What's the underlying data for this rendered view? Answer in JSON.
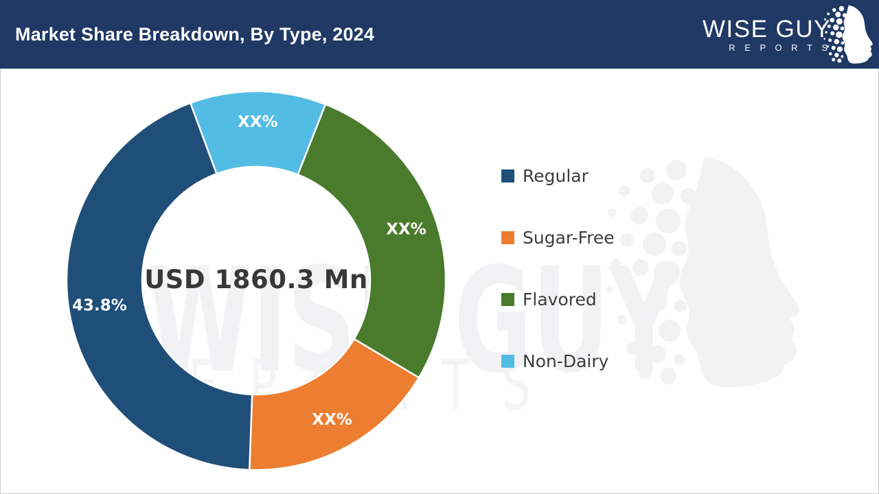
{
  "header": {
    "title": "Market Share Breakdown, By Type, 2024",
    "logo": {
      "line1": "WISE GUY",
      "line2": "R E P O R T S"
    }
  },
  "watermark": {
    "line1": "WISE GUY",
    "line2": "R E P O R T S"
  },
  "chart_data": {
    "type": "pie",
    "subtype": "donut",
    "title": "Market Share Breakdown, By Type, 2024",
    "center_label": "USD 1860.3 Mn",
    "units": "percent of market share",
    "segments": [
      {
        "name": "Regular",
        "label": "Regular",
        "value_pct": 43.8,
        "display_label": "43.8%",
        "color": "#1F4E79"
      },
      {
        "name": "Sugar-Free",
        "label": "Sugar-Free",
        "value_pct": 17.0,
        "display_label": "XX%",
        "color": "#ED7D31"
      },
      {
        "name": "Flavored",
        "label": "Flavored",
        "value_pct": 27.6,
        "display_label": "XX%",
        "color": "#4A7B2C"
      },
      {
        "name": "Non-Dairy",
        "label": "Non-Dairy",
        "value_pct": 11.6,
        "display_label": "XX%",
        "color": "#53BCE5"
      }
    ],
    "layout": {
      "start_angle_deg": -20.3,
      "draw_order": [
        "Non-Dairy",
        "Flavored",
        "Sugar-Free",
        "Regular"
      ],
      "legend_position": "right",
      "donut_hole_ratio": 0.6,
      "grid": false
    }
  },
  "colors": {
    "header_bg": "#1F3864",
    "content_border": "#C9C9C9",
    "center_text": "#383838",
    "legend_text": "#3D3D3D",
    "slice_label_text": "#FFFFFF",
    "watermark": "#F2F2F4"
  }
}
